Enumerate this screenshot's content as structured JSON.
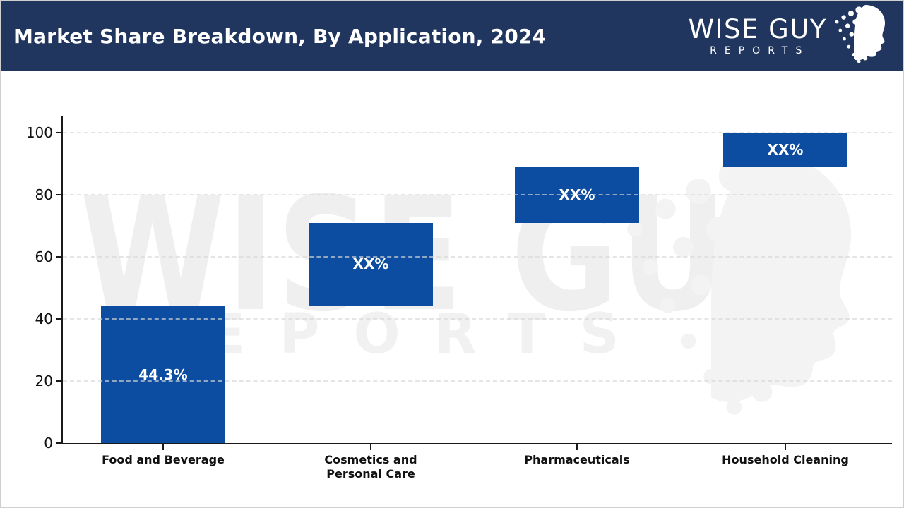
{
  "header": {
    "title": "Market Share Breakdown, By Application, 2024",
    "logo": {
      "wordmark": "WISE GUY",
      "subtext": "REPORTS"
    }
  },
  "watermark": {
    "line1": "WISE GUY",
    "line2": "REPORTS"
  },
  "chart_data": {
    "type": "bar",
    "subtype": "floating-waterfall-segments",
    "title": "Market Share Breakdown, By Application, 2024",
    "categories": [
      "Food and Beverage",
      "Cosmetics and\nPersonal Care",
      "Pharmaceuticals",
      "Household Cleaning"
    ],
    "bars": [
      {
        "category": "Food and Beverage",
        "start": 0,
        "end": 44.3,
        "label": "44.3%"
      },
      {
        "category": "Cosmetics and Personal Care",
        "start": 44.3,
        "end": 71,
        "label": "XX%"
      },
      {
        "category": "Pharmaceuticals",
        "start": 71,
        "end": 89,
        "label": "XX%"
      },
      {
        "category": "Household Cleaning",
        "start": 89,
        "end": 100,
        "label": "XX%"
      }
    ],
    "xlabel": "",
    "ylabel": "",
    "ylim": [
      0,
      100
    ],
    "yticks": [
      0,
      20,
      40,
      60,
      80,
      100
    ],
    "grid": "dashed horizontal lines drawn over bars",
    "legend": "none",
    "bar_color": "#0d4da1",
    "bar_label_color": "#ffffff"
  },
  "colors": {
    "header_bg": "#20365f",
    "bar": "#0d4da1",
    "axis": "#1a1a1a",
    "grid": "#e0e0e0",
    "watermark": "#f1f1f1",
    "page_bg": "#ffffff"
  }
}
